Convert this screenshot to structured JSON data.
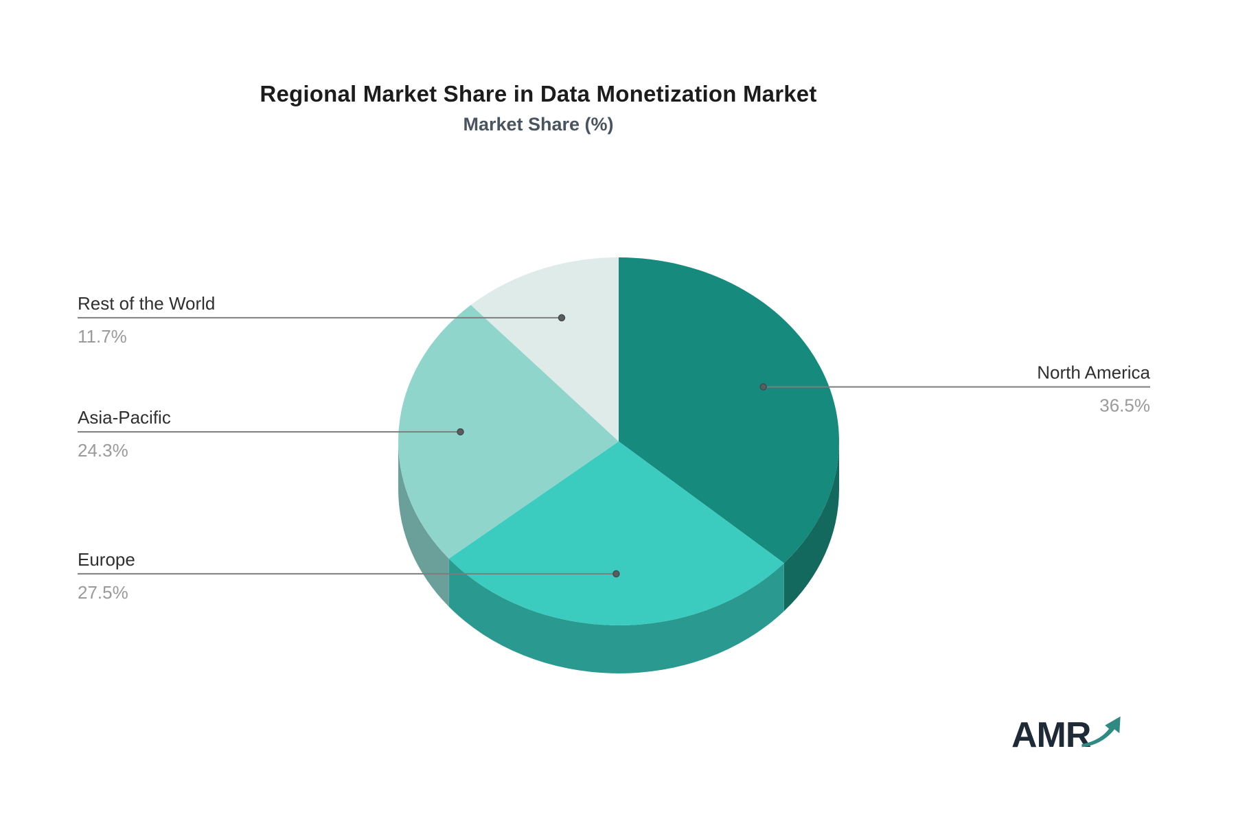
{
  "header": {
    "title": "Regional Market Share in Data Monetization Market",
    "subtitle": "Market Share (%)"
  },
  "chart_data": {
    "type": "pie",
    "style": "3d",
    "title": "Regional Market Share in Data Monetization Market",
    "subtitle": "Market Share (%)",
    "unit": "%",
    "total": 100,
    "start_angle_deg": 0,
    "direction": "clockwise",
    "legend_position": "none",
    "labels_style": "leader-lines",
    "slices": [
      {
        "label": "North America",
        "value": 36.5,
        "display": "36.5%",
        "color": "#178a7e",
        "side_color": "#14695f",
        "label_side": "right"
      },
      {
        "label": "Europe",
        "value": 27.5,
        "display": "27.5%",
        "color": "#3bccbf",
        "side_color": "#2a9a90",
        "label_side": "left"
      },
      {
        "label": "Asia-Pacific",
        "value": 24.3,
        "display": "24.3%",
        "color": "#90d5cc",
        "side_color": "#6aa099",
        "label_side": "left"
      },
      {
        "label": "Rest of the World",
        "value": 11.7,
        "display": "11.7%",
        "color": "#deebe8",
        "side_color": "#c2d6d2",
        "label_side": "left"
      }
    ]
  },
  "colors": {
    "background": "#ffffff",
    "title": "#1c1c1c",
    "subtitle": "#4a545f",
    "label_text": "#2f2f2f",
    "value_text": "#9a9a9a",
    "leader_line": "#7d7d7d",
    "leader_dot": "#585d5f",
    "logo_text": "#1e2a35",
    "logo_arrow": "#2e8a82"
  },
  "logo": {
    "text": "AMR"
  }
}
